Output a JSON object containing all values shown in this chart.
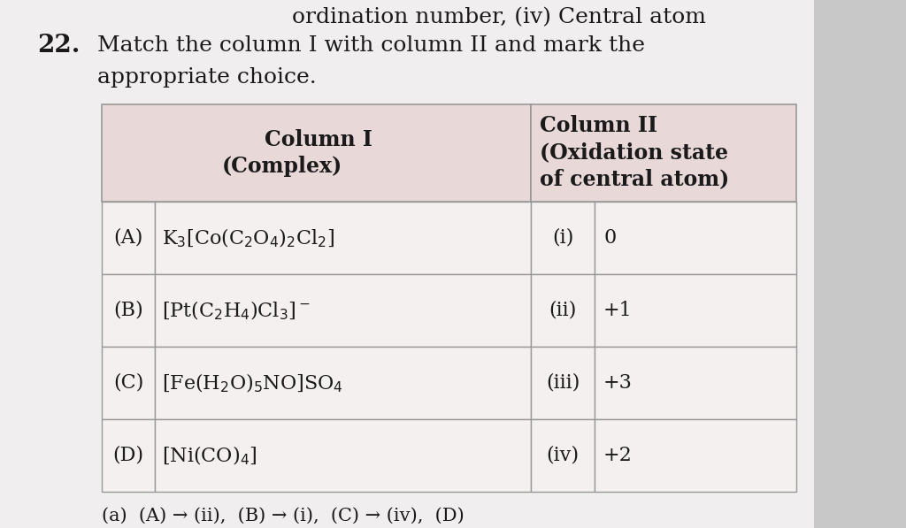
{
  "bg_color": "#d8d8d8",
  "page_color": "#f0eeee",
  "header_bg": "#e8d8d8",
  "row_bg": "#f5f0f0",
  "grid_color": "#999999",
  "text_color": "#1a1a1a",
  "title_text1": "ordination number, (iv) Central atom",
  "title_text2": "Match the column I with column II and mark the",
  "title_text3": "appropriate choice.",
  "q_number": "22.",
  "col1_header_line1": "Column I",
  "col1_header_line2": "(Complex)",
  "col2_header_line1": "Column II",
  "col2_header_line2": "(Oxidation state",
  "col2_header_line3": "of central atom)",
  "rows": [
    {
      "label": "(A)",
      "complex": "K$_3$[Co(C$_2$O$_4$)$_2$Cl$_2$]",
      "roman": "(i)",
      "value": "0"
    },
    {
      "label": "(B)",
      "complex": "[Pt(C$_2$H$_4$)Cl$_3$]$^-$",
      "roman": "(ii)",
      "value": "+1"
    },
    {
      "label": "(C)",
      "complex": "[Fe(H$_2$O)$_5$NO]SO$_4$",
      "roman": "(iii)",
      "value": "+3"
    },
    {
      "label": "(D)",
      "complex": "[Ni(CO)$_4$]",
      "roman": "(iv)",
      "value": "+2"
    }
  ],
  "bottom_text": "(a)  (A) → (ii),  (B) → (i),  (C) → (iv),  (D)",
  "font_size_title": 18,
  "font_size_header": 17,
  "font_size_row": 16,
  "font_size_qnum": 20,
  "font_size_bottom": 15
}
